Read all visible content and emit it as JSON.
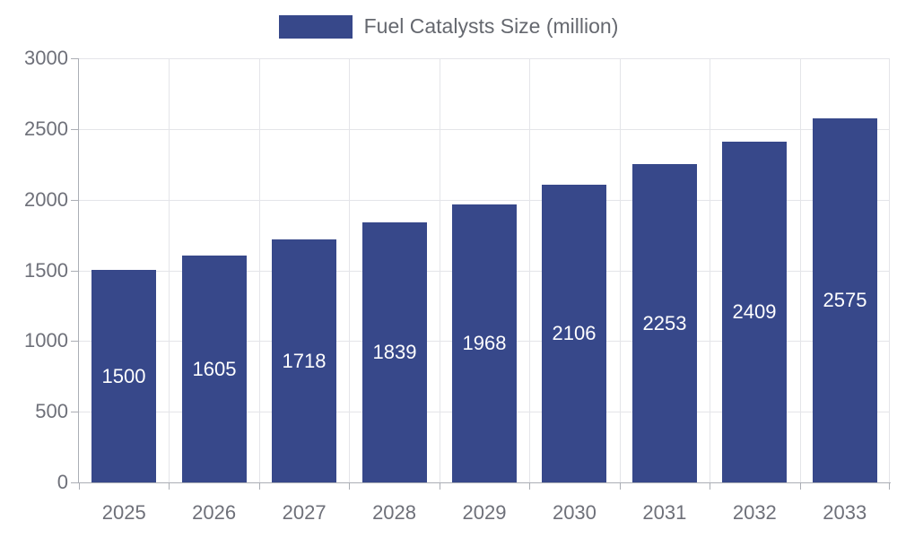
{
  "legend": {
    "items": [
      {
        "label": "Fuel Catalysts Size (million)"
      }
    ]
  },
  "chart_data": {
    "type": "bar",
    "title": "Fuel Catalysts Size (million)",
    "categories": [
      "2025",
      "2026",
      "2027",
      "2028",
      "2029",
      "2030",
      "2031",
      "2032",
      "2033"
    ],
    "series": [
      {
        "name": "Fuel Catalysts Size (million)",
        "values": [
          1500,
          1605,
          1718,
          1839,
          1968,
          2106,
          2253,
          2409,
          2575
        ]
      }
    ],
    "xlabel": "",
    "ylabel": "",
    "ylim": [
      0,
      3000
    ],
    "yticks": [
      0,
      500,
      1000,
      1500,
      2000,
      2500,
      3000
    ],
    "grid": true,
    "legend_position": "top",
    "value_labels": "inside-center",
    "bar_color": "#37488A",
    "value_label_color": "#FFFFFF",
    "axis_text_color": "#6E7079",
    "grid_color": "#E4E5E9",
    "axis_line_color": "#ABAEB5",
    "background_color": "#FFFFFF"
  }
}
